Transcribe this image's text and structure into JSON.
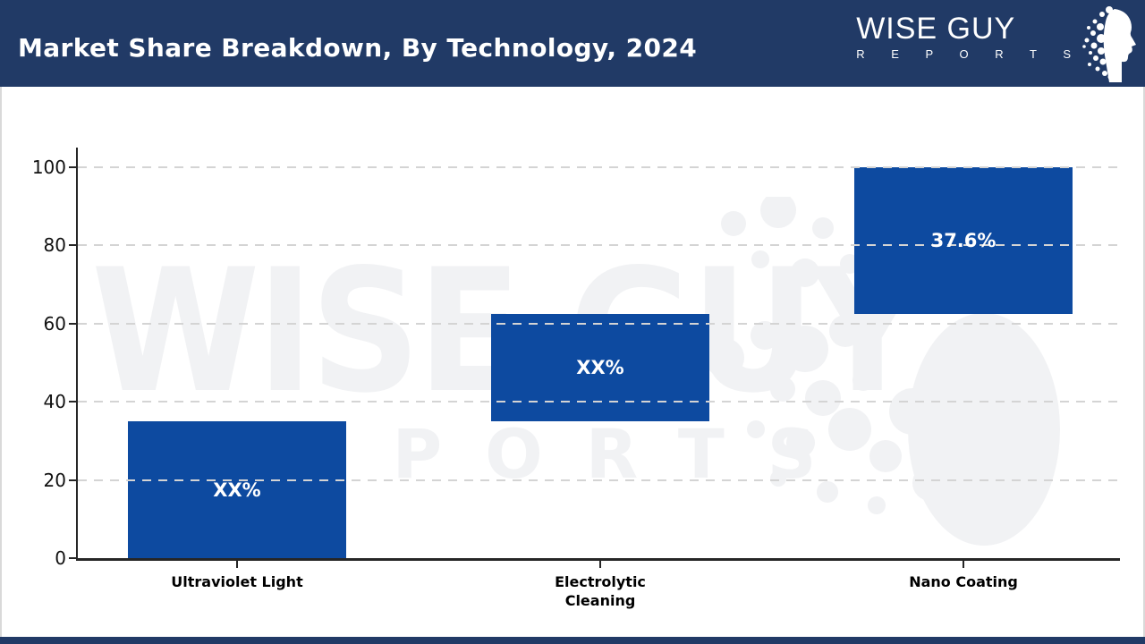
{
  "header": {
    "title": "Market Share Breakdown, By Technology, 2024",
    "bg_color": "#213A66",
    "logo": {
      "line1": "WISE GUY",
      "line2": "R E P O R T S"
    }
  },
  "watermark": {
    "line1": "WISE GUY",
    "line2": "REPORTS"
  },
  "chart_data": {
    "type": "bar",
    "subtype": "stacked-waterfall",
    "title": "Market Share Breakdown, By Technology, 2024",
    "categories": [
      "Ultraviolet Light",
      "Electrolytic\nCleaning",
      "Nano Coating"
    ],
    "segments": [
      {
        "category": "Ultraviolet Light",
        "from": 0,
        "to": 35,
        "value_label": "XX%"
      },
      {
        "category": "Electrolytic Cleaning",
        "from": 35,
        "to": 62.4,
        "value_label": "XX%"
      },
      {
        "category": "Nano Coating",
        "from": 62.4,
        "to": 100,
        "value_label": "37.6%"
      }
    ],
    "y_ticks": [
      0,
      20,
      40,
      60,
      80,
      100
    ],
    "ylim": [
      0,
      105
    ],
    "grid": "horizontal-dashed",
    "legend": "none",
    "bar_color": "#0D4AA0",
    "grid_color": "#d4d4d4",
    "xlabel": "",
    "ylabel": ""
  }
}
